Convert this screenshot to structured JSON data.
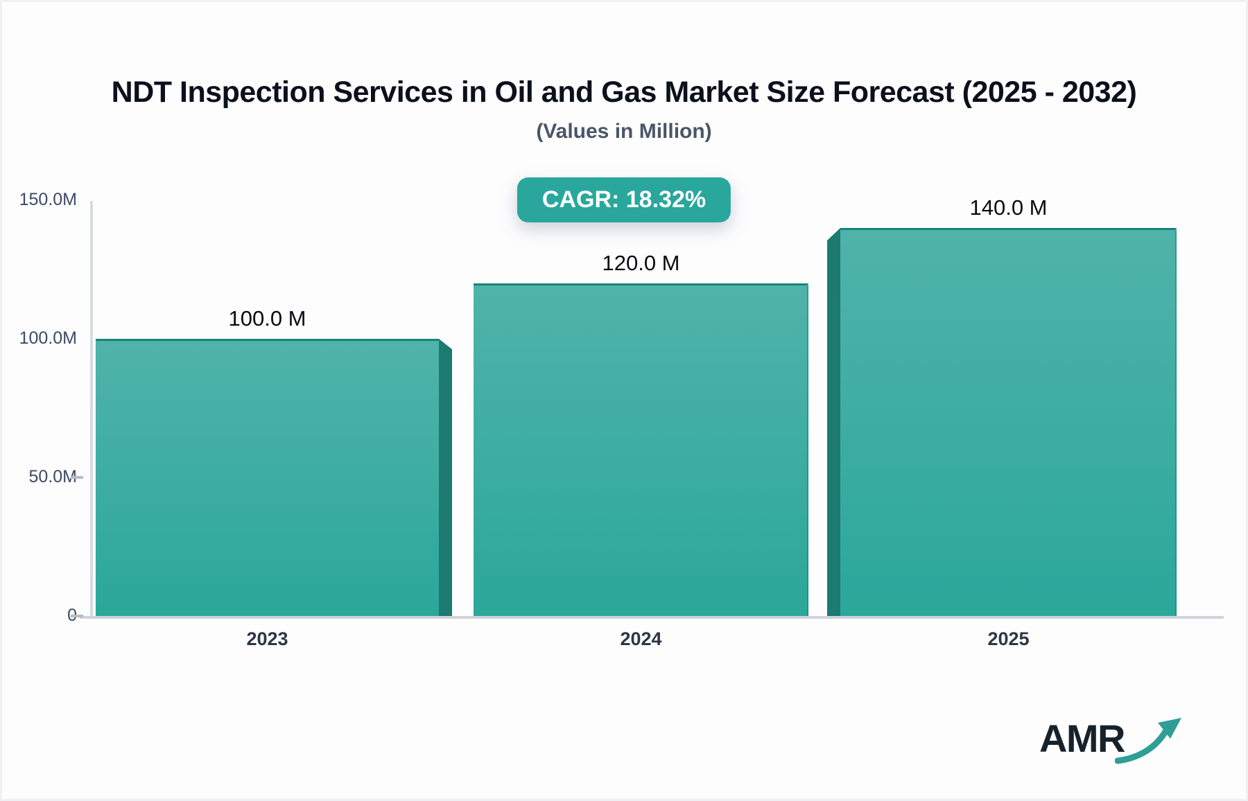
{
  "header": {
    "title": "NDT Inspection Services in Oil and Gas Market Size Forecast (2025 - 2032)",
    "subtitle": "(Values in Million)",
    "cagr_badge": "CAGR: 18.32%"
  },
  "badge": {
    "background_color": "#2aa79c",
    "text_color": "#ffffff",
    "cagr_percent": 18.32
  },
  "chart_data": {
    "type": "bar",
    "title": "NDT Inspection Services in Oil and Gas Market Size Forecast (2025 - 2032)",
    "subtitle": "(Values in Million)",
    "unit": "Million",
    "categories": [
      "2023",
      "2024",
      "2025"
    ],
    "values": [
      100,
      120,
      140
    ],
    "value_labels": [
      "100.0 M",
      "120.0 M",
      "140.0 M"
    ],
    "ylim": [
      0,
      150
    ],
    "y_ticks": [
      {
        "value": 150,
        "label": "150.0M"
      },
      {
        "value": 100,
        "label": "100.0M"
      },
      {
        "value": 50,
        "label": "50.0M"
      },
      {
        "value": 0,
        "label": "0"
      }
    ],
    "grid": false,
    "legend_position": "none",
    "bar_color_top": "#50b3aa",
    "bar_color_bottom": "#2ba79a",
    "bar_side_color": "#1d7a71",
    "bar_edge_color": "#15837a",
    "axis_color": "#cfd3db",
    "label_color": "#2c3646"
  },
  "logo": {
    "text": "AMR",
    "arrow_icon": "trending-up-arrow",
    "text_color": "#16222b",
    "arrow_color": "#2f9e96"
  }
}
